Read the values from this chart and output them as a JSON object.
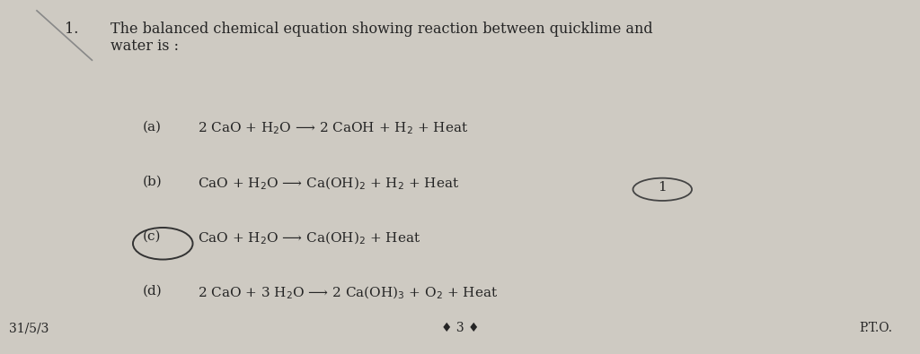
{
  "background_color": "#c8c4bc",
  "question_number": "1.",
  "question_text": "The balanced chemical equation showing reaction between quicklime and\nwater is :",
  "options": [
    {
      "label": "(a)",
      "equation": "2 CaO + H$_2$O ⟶ 2 CaOH + H$_2$ + Heat",
      "circled_number": null,
      "label_circled": false
    },
    {
      "label": "(b)",
      "equation": "CaO + H$_2$O ⟶ Ca(OH)$_2$ + H$_2$ + Heat",
      "circled_number": "1",
      "label_circled": false
    },
    {
      "label": "(c)",
      "equation": "CaO + H$_2$O ⟶ Ca(OH)$_2$ + Heat",
      "circled_number": null,
      "label_circled": true
    },
    {
      "label": "(d)",
      "equation": "2 CaO + 3 H$_2$O ⟶ 2 Ca(OH)$_3$ + O$_2$ + Heat",
      "circled_number": null,
      "label_circled": false
    }
  ],
  "footer_left": "31/5/3",
  "footer_center": "♦ 3 ♦",
  "footer_right": "P.T.O.",
  "font_size_question": 11.5,
  "font_size_option": 11,
  "font_size_footer": 10,
  "text_color": "#252525"
}
